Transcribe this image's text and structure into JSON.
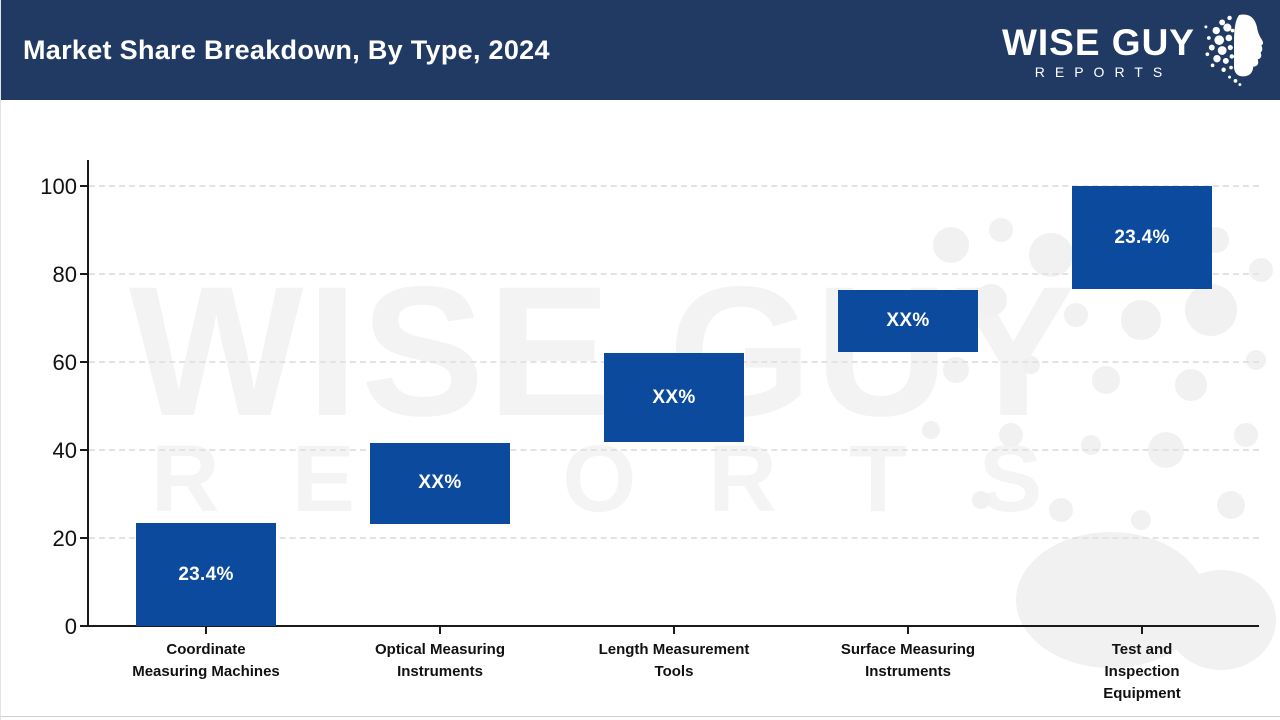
{
  "header": {
    "title": "Market Share Breakdown, By Type, 2024",
    "logo": {
      "line1": "WISE GUY",
      "line2": "REPORTS"
    }
  },
  "watermark": {
    "line1": "WISE GUY",
    "line2": "REPORTS"
  },
  "colors": {
    "header_bg": "#213a63",
    "bar": "#0c4a9e",
    "grid": "#e3e3e3",
    "axis": "#1a1a1a",
    "bar_label": "#ffffff",
    "watermark": "#f3f3f3"
  },
  "chart_data": {
    "type": "bar",
    "subtype": "waterfall",
    "title": "Market Share Breakdown, By Type, 2024",
    "categories": [
      "Coordinate\nMeasuring Machines",
      "Optical Measuring\nInstruments",
      "Length Measurement\nTools",
      "Surface Measuring\nInstruments",
      "Test and\nInspection\nEquipment"
    ],
    "segments": [
      {
        "start": 0,
        "end": 23.4,
        "label": "23.4%"
      },
      {
        "start": 23.3,
        "end": 41.6,
        "label": "XX%"
      },
      {
        "start": 41.8,
        "end": 62.1,
        "label": "XX%"
      },
      {
        "start": 62.3,
        "end": 76.5,
        "label": "XX%"
      },
      {
        "start": 76.7,
        "end": 100,
        "label": "23.4%"
      }
    ],
    "y_ticks": [
      0,
      20,
      40,
      60,
      80,
      100
    ],
    "ylim": [
      0,
      106
    ],
    "xlabel": "",
    "ylabel": "",
    "grid": "dashed-horizontal",
    "legend": "none"
  }
}
